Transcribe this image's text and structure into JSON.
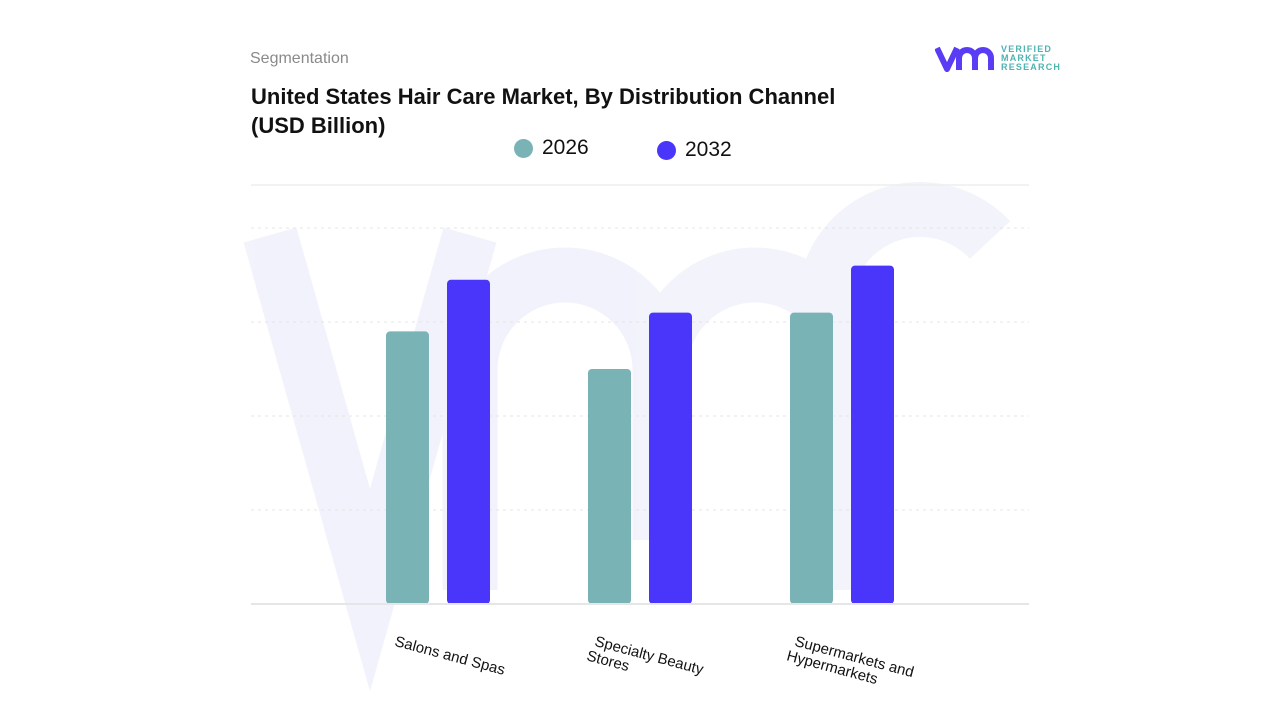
{
  "header": {
    "section": "Segmentation",
    "title": "United States Hair Care Market, By Distribution Channel (USD Billion)"
  },
  "logo": {
    "lines": [
      "VERIFIED",
      "MARKET",
      "RESEARCH"
    ],
    "icon": "vmr-logo"
  },
  "chart_data": {
    "type": "bar",
    "title": "United States Hair Care Market, By Distribution Channel (USD Billion)",
    "categories": [
      "Salons and Spas",
      "Specialty Beauty Stores",
      "Supermarkets and Hypermarkets"
    ],
    "category_lines": [
      [
        "Salons and Spas"
      ],
      [
        "Specialty Beauty",
        "Stores"
      ],
      [
        "Supermarkets and",
        "Hypermarkets"
      ]
    ],
    "series": [
      {
        "name": "2026",
        "color": "#7ab3b6",
        "values": [
          2.9,
          2.5,
          3.1
        ]
      },
      {
        "name": "2032",
        "color": "#4a36fb",
        "values": [
          3.45,
          3.1,
          3.6
        ]
      }
    ],
    "ylim": [
      0,
      4
    ],
    "grid": true,
    "y_ticks_shown": false,
    "legend_position": "top",
    "xlabel": "",
    "ylabel": ""
  }
}
